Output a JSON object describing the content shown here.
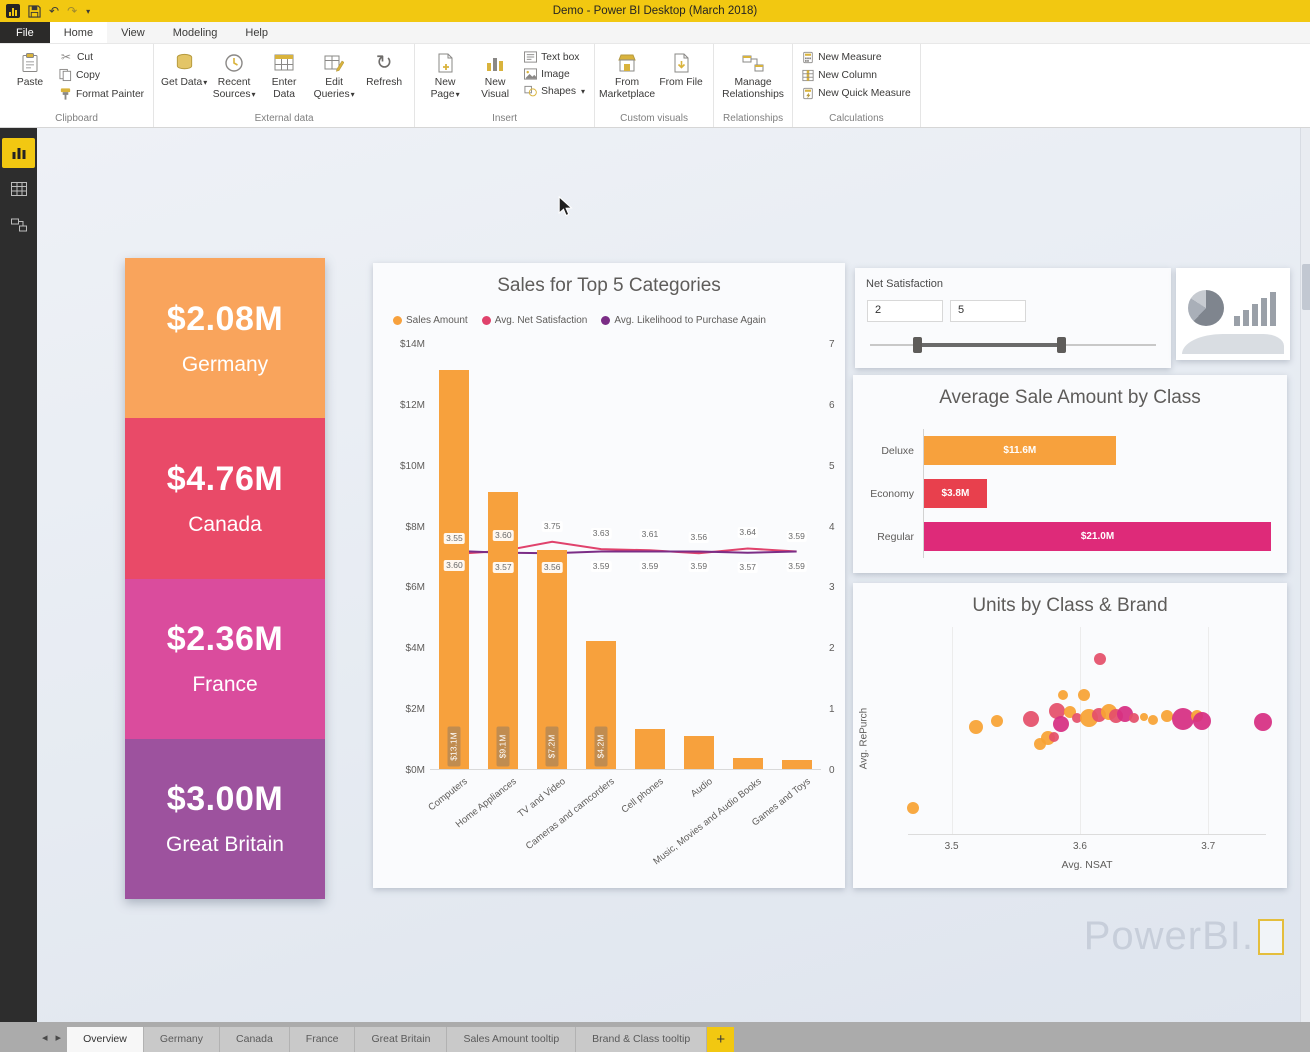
{
  "icons": {
    "dropdown_caret": "▾",
    "undo": "↶",
    "redo": "↷",
    "cut": "✂",
    "refresh": "↻",
    "nav_prev": "◂",
    "nav_next": "▸",
    "plus": "+"
  },
  "titlebar": {
    "title": "Demo - Power BI Desktop (March 2018)"
  },
  "ribbon": {
    "tabs": [
      {
        "label": "File"
      },
      {
        "label": "Home"
      },
      {
        "label": "View"
      },
      {
        "label": "Modeling"
      },
      {
        "label": "Help"
      }
    ],
    "clipboard": {
      "label": "Clipboard",
      "paste": "Paste",
      "cut": "Cut",
      "copy": "Copy",
      "format_painter": "Format Painter"
    },
    "external_data": {
      "label": "External data",
      "get_data": "Get Data",
      "recent_sources": "Recent Sources",
      "enter_data": "Enter Data",
      "edit_queries": "Edit Queries",
      "refresh": "Refresh"
    },
    "insert": {
      "label": "Insert",
      "new_page": "New Page",
      "new_visual": "New Visual",
      "text_box": "Text box",
      "image": "Image",
      "shapes": "Shapes"
    },
    "custom_visuals": {
      "label": "Custom visuals",
      "from_marketplace": "From Marketplace",
      "from_file": "From File"
    },
    "relationships_group": {
      "label": "Relationships",
      "manage_relationships": "Manage Relationships"
    },
    "calculations": {
      "label": "Calculations",
      "new_measure": "New Measure",
      "new_column": "New Column",
      "new_quick_measure": "New Quick Measure"
    }
  },
  "kpi_cards": [
    {
      "value": "$2.08M",
      "label": "Germany",
      "color": "#F9A45C"
    },
    {
      "value": "$4.76M",
      "label": "Canada",
      "color": "#E94A68"
    },
    {
      "value": "$2.36M",
      "label": "France",
      "color": "#DA4C9D"
    },
    {
      "value": "$3.00M",
      "label": "Great Britain",
      "color": "#9D529E"
    }
  ],
  "slicer": {
    "title": "Net Satisfaction",
    "min_value": "2",
    "max_value": "5",
    "handle_fracs": [
      0.165,
      0.667
    ]
  },
  "chart_data": [
    {
      "type": "combo",
      "title": "Sales for Top 5 Categories",
      "legend": [
        {
          "label": "Sales Amount",
          "color": "#F7A13D"
        },
        {
          "label": "Avg. Net Satisfaction",
          "color": "#E0426C"
        },
        {
          "label": "Avg. Likelihood to Purchase Again",
          "color": "#7B2D86"
        }
      ],
      "categories": [
        "Computers",
        "Home Appliances",
        "TV and Video",
        "Cameras and camcorders",
        "Cell phones",
        "Audio",
        "Music, Movies and Audio Books",
        "Games and Toys"
      ],
      "bar_values_m": [
        13.1,
        9.1,
        7.2,
        4.2,
        1.3,
        1.1,
        0.35,
        0.3
      ],
      "bar_labels": [
        "$13.1M",
        "$9.1M",
        "$7.2M",
        "$4.2M",
        "",
        "",
        "",
        ""
      ],
      "line_series": [
        {
          "name": "Avg. Net Satisfaction",
          "color": "#E0426C",
          "values": [
            3.55,
            3.6,
            3.75,
            3.63,
            3.61,
            3.56,
            3.64,
            3.59
          ]
        },
        {
          "name": "Avg. Likelihood to Purchase Again",
          "color": "#7B2D86",
          "values": [
            3.6,
            3.57,
            3.56,
            3.59,
            3.59,
            3.59,
            3.57,
            3.59
          ]
        }
      ],
      "y_left_ticks": [
        "$14M",
        "$12M",
        "$10M",
        "$8M",
        "$6M",
        "$4M",
        "$2M",
        "$0M"
      ],
      "y_left_max": 14,
      "y_right_ticks": [
        "7",
        "6",
        "5",
        "4",
        "3",
        "2",
        "1",
        "0"
      ],
      "y_right_max": 7
    },
    {
      "type": "bar",
      "title": "Average Sale Amount by Class",
      "categories": [
        "Deluxe",
        "Economy",
        "Regular"
      ],
      "values_m": [
        11.6,
        3.8,
        21.0
      ],
      "labels": [
        "$11.6M",
        "$3.8M",
        "$21.0M"
      ],
      "colors": [
        "#F7A13D",
        "#E8404D",
        "#DE2A79"
      ],
      "xmax": 21.0
    },
    {
      "type": "scatter",
      "title": "Units by Class & Brand",
      "xlabel": "Avg. NSAT",
      "ylabel": "Avg. RePurch",
      "x_ticks": [
        "3.5",
        "3.6",
        "3.7"
      ],
      "x_range": [
        3.466,
        3.745
      ],
      "point_colors": {
        "o": "#F7A234",
        "r": "#E4506B",
        "m": "#D62E82"
      },
      "points": [
        {
          "x": 3.47,
          "y": 0.868,
          "r": 6,
          "c": "o"
        },
        {
          "x": 3.519,
          "y": 0.483,
          "r": 7,
          "c": "o"
        },
        {
          "x": 3.535,
          "y": 0.454,
          "r": 6,
          "c": "o"
        },
        {
          "x": 3.562,
          "y": 0.444,
          "r": 8,
          "c": "r"
        },
        {
          "x": 3.569,
          "y": 0.561,
          "r": 6,
          "c": "o"
        },
        {
          "x": 3.575,
          "y": 0.532,
          "r": 7,
          "c": "o"
        },
        {
          "x": 3.58,
          "y": 0.527,
          "r": 5,
          "c": "r"
        },
        {
          "x": 3.582,
          "y": 0.405,
          "r": 8,
          "c": "r"
        },
        {
          "x": 3.585,
          "y": 0.468,
          "r": 8,
          "c": "m"
        },
        {
          "x": 3.587,
          "y": 0.327,
          "r": 5,
          "c": "o"
        },
        {
          "x": 3.592,
          "y": 0.41,
          "r": 6,
          "c": "o"
        },
        {
          "x": 3.598,
          "y": 0.439,
          "r": 5,
          "c": "r"
        },
        {
          "x": 3.603,
          "y": 0.327,
          "r": 6,
          "c": "o"
        },
        {
          "x": 3.607,
          "y": 0.439,
          "r": 9,
          "c": "o"
        },
        {
          "x": 3.615,
          "y": 0.424,
          "r": 7,
          "c": "r"
        },
        {
          "x": 3.616,
          "y": 0.156,
          "r": 6,
          "c": "r"
        },
        {
          "x": 3.623,
          "y": 0.41,
          "r": 8,
          "c": "o"
        },
        {
          "x": 3.628,
          "y": 0.429,
          "r": 7,
          "c": "r"
        },
        {
          "x": 3.635,
          "y": 0.42,
          "r": 8,
          "c": "m"
        },
        {
          "x": 3.642,
          "y": 0.439,
          "r": 5,
          "c": "r"
        },
        {
          "x": 3.65,
          "y": 0.434,
          "r": 4,
          "c": "o"
        },
        {
          "x": 3.657,
          "y": 0.449,
          "r": 5,
          "c": "o"
        },
        {
          "x": 3.668,
          "y": 0.429,
          "r": 6,
          "c": "o"
        },
        {
          "x": 3.68,
          "y": 0.444,
          "r": 11,
          "c": "m"
        },
        {
          "x": 3.691,
          "y": 0.429,
          "r": 6,
          "c": "o"
        },
        {
          "x": 3.695,
          "y": 0.454,
          "r": 9,
          "c": "m"
        },
        {
          "x": 3.743,
          "y": 0.459,
          "r": 9,
          "c": "m"
        }
      ]
    }
  ],
  "pages": {
    "tabs": [
      {
        "label": "Overview",
        "active": true
      },
      {
        "label": "Germany"
      },
      {
        "label": "Canada"
      },
      {
        "label": "France"
      },
      {
        "label": "Great Britain"
      },
      {
        "label": "Sales Amount tooltip"
      },
      {
        "label": "Brand & Class tooltip"
      }
    ]
  },
  "watermark": {
    "text": "PowerBI."
  }
}
